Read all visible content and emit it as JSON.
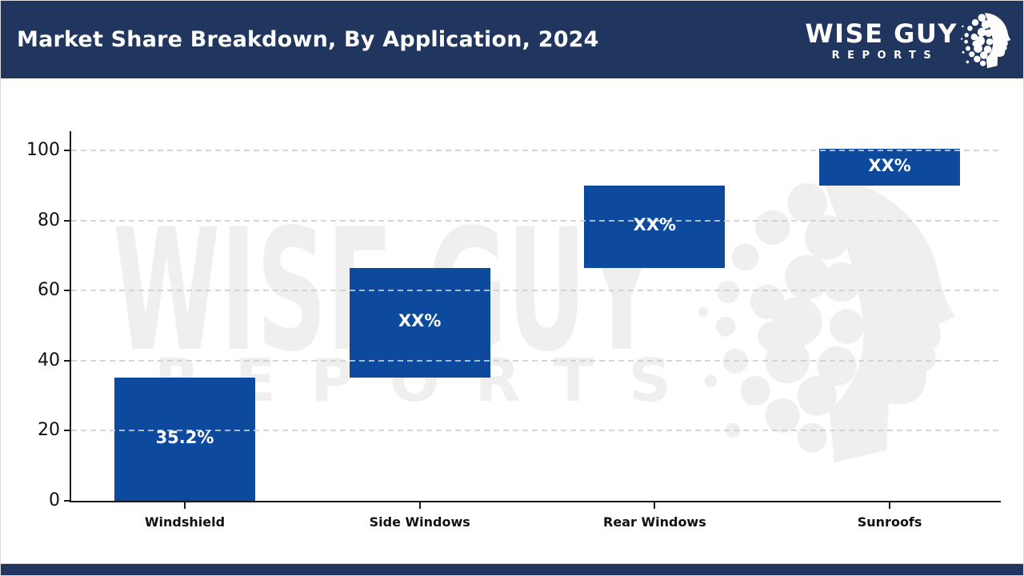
{
  "header": {
    "title": "Market Share Breakdown, By Application, 2024",
    "bg_color": "#20365f",
    "logo": {
      "line1": "WISE GUY",
      "line2": "REPORTS"
    }
  },
  "watermark": {
    "line1": "WISE GUY",
    "line2": "REPORTS"
  },
  "chart_data": {
    "type": "bar",
    "subtype": "floating_segment_waterfall",
    "title": "Market Share Breakdown, By Application, 2024",
    "categories": [
      "Windshield",
      "Side Windows",
      "Rear Windows",
      "Sunroofs"
    ],
    "segments": [
      {
        "category": "Windshield",
        "start": 0,
        "end": 35.2,
        "label": "35.2%"
      },
      {
        "category": "Side Windows",
        "start": 35.2,
        "end": 66.5,
        "label": "XX%"
      },
      {
        "category": "Rear Windows",
        "start": 66.5,
        "end": 90,
        "label": "XX%"
      },
      {
        "category": "Sunroofs",
        "start": 90,
        "end": 100.5,
        "label": "XX%"
      }
    ],
    "xlabel": "",
    "ylabel": "",
    "yticks": [
      0,
      20,
      40,
      60,
      80,
      100
    ],
    "ylim": [
      0,
      105
    ],
    "grid": "horizontal-dashed",
    "legend": "none",
    "bar_color": "#0d4a9e",
    "bar_label_color": "#ffffff",
    "axis_color": "#1a1a1a",
    "gridline_color": "#d3d3d3"
  },
  "footer": {
    "bg_color": "#20365f"
  }
}
